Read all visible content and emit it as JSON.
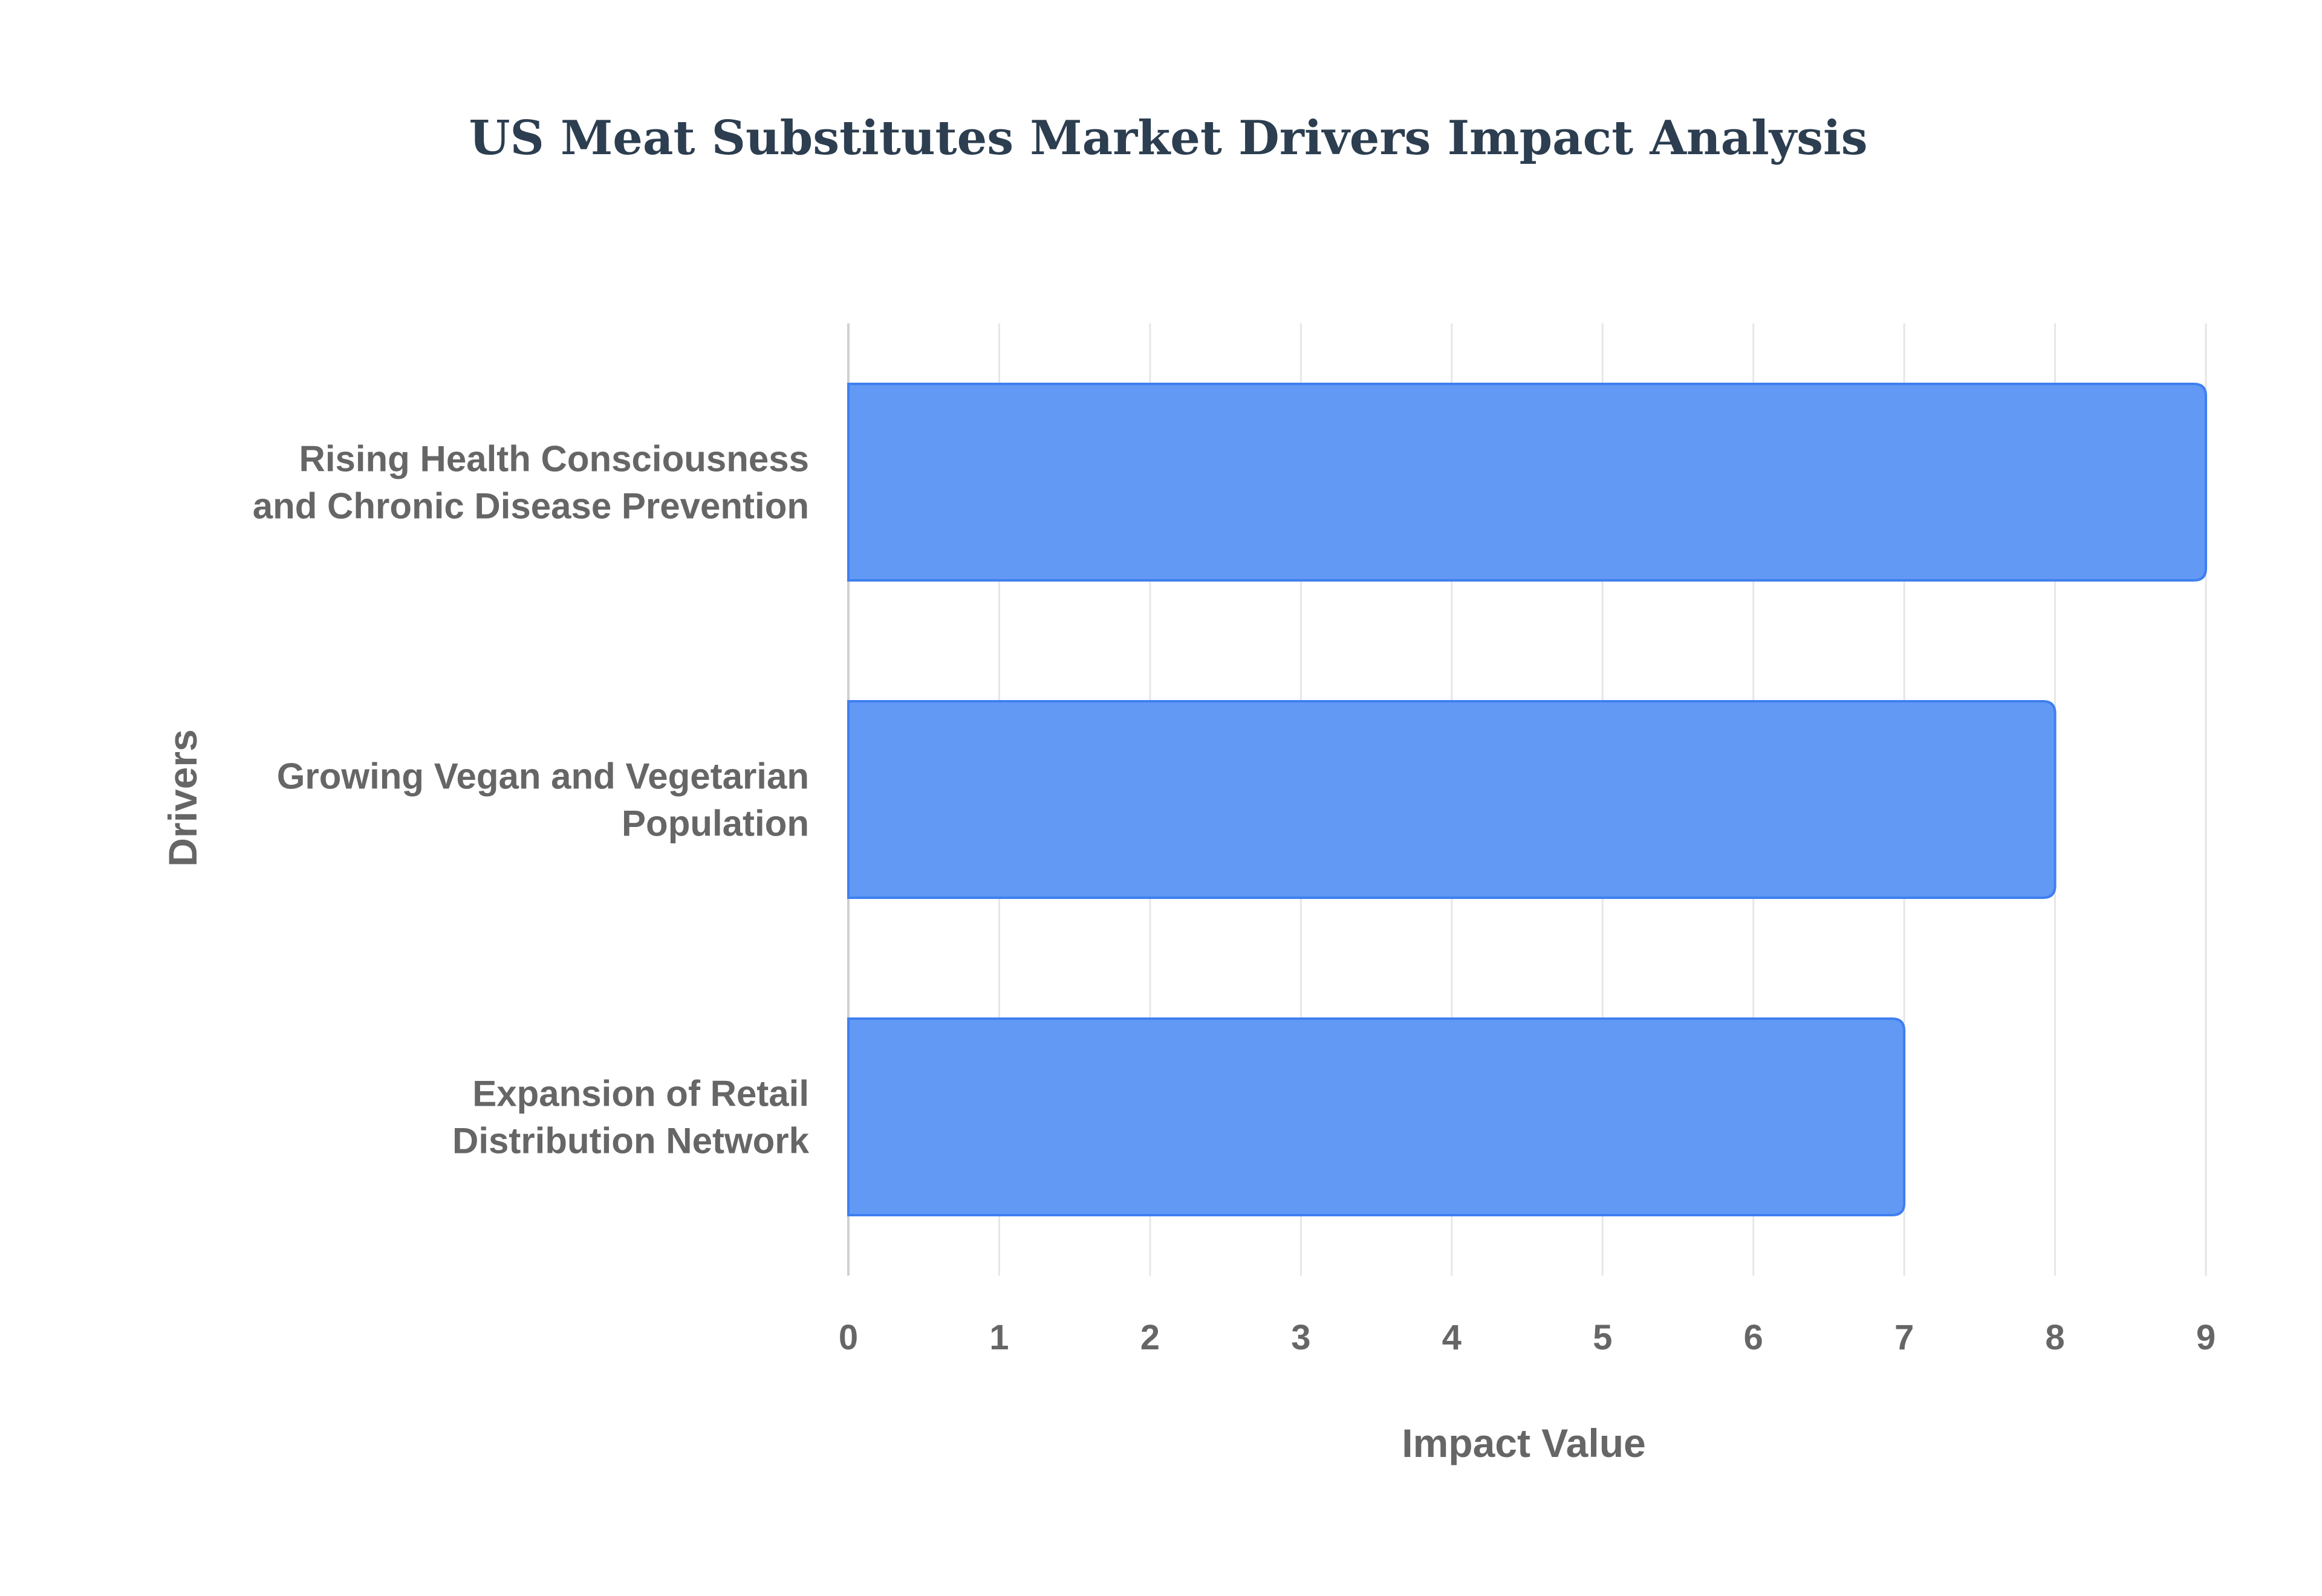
{
  "chart_data": {
    "type": "bar",
    "orientation": "horizontal",
    "title": "US Meat Substitutes Market Drivers Impact Analysis",
    "xlabel": "Impact Value",
    "ylabel": "Drivers",
    "categories": [
      [
        "Rising Health Consciousness",
        "and Chronic Disease Prevention"
      ],
      [
        "Growing Vegan and Vegetarian",
        "Population"
      ],
      [
        "Expansion of Retail",
        "Distribution Network"
      ]
    ],
    "values": [
      9,
      8,
      7
    ],
    "xlim": [
      0,
      9
    ],
    "xticks": [
      "0",
      "1",
      "2",
      "3",
      "4",
      "5",
      "6",
      "7",
      "8",
      "9"
    ],
    "grid": true,
    "legend": "none"
  },
  "colors": {
    "bar_fill": "#6199f5",
    "bar_stroke": "#3f7fef",
    "title": "#2c3e50",
    "label": "#666666",
    "grid": "#e6e6e6",
    "axis": "#d0d0d0"
  }
}
